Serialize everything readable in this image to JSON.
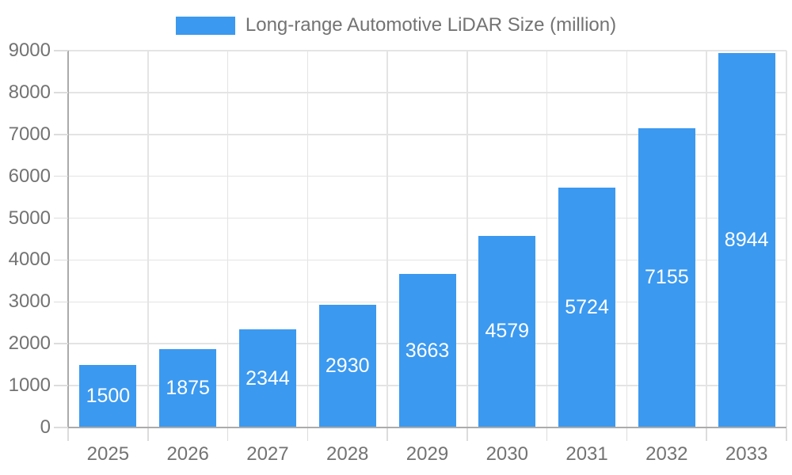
{
  "chart_data": {
    "type": "bar",
    "title": "",
    "series_name": "Long-range Automotive LiDAR Size (million)",
    "categories": [
      "2025",
      "2026",
      "2027",
      "2028",
      "2029",
      "2030",
      "2031",
      "2032",
      "2033"
    ],
    "values": [
      1500,
      1875,
      2344,
      2930,
      3663,
      4579,
      5724,
      7155,
      8944
    ],
    "xlabel": "",
    "ylabel": "",
    "ylim": [
      0,
      9000
    ],
    "yticks": [
      0,
      1000,
      2000,
      3000,
      4000,
      5000,
      6000,
      7000,
      8000,
      9000
    ],
    "grid": true,
    "legend_position": "top",
    "value_label_position": "inside-center"
  },
  "colors": {
    "bar": "#3b99f0",
    "value_label": "#ffffff",
    "grid": "#e4e4e4",
    "axis": "#ababab",
    "tick": "#dcdcdc",
    "label": "#737373",
    "background": "#ffffff"
  }
}
